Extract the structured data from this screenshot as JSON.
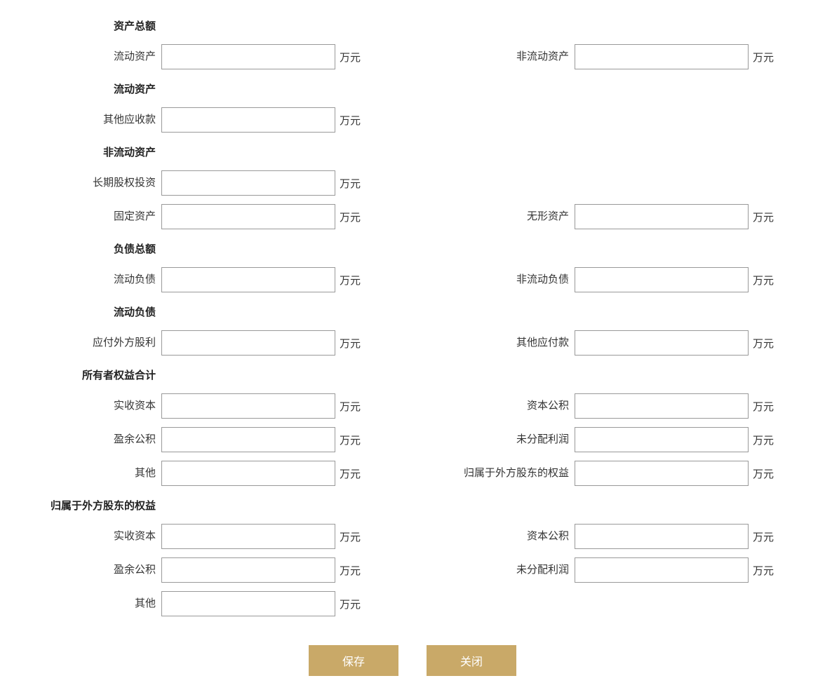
{
  "unit": "万元",
  "sections": {
    "total_assets": {
      "header": "资产总额"
    },
    "current_assets_section": {
      "header": "流动资产"
    },
    "non_current_assets_section": {
      "header": "非流动资产"
    },
    "total_liabilities": {
      "header": "负债总额"
    },
    "current_liabilities_section": {
      "header": "流动负债"
    },
    "owners_equity_section": {
      "header": "所有者权益合计"
    },
    "foreign_equity_section": {
      "header": "归属于外方股东的权益"
    }
  },
  "labels": {
    "current_assets": "流动资产",
    "non_current_assets": "非流动资产",
    "other_receivables": "其他应收款",
    "long_term_equity_investment": "长期股权投资",
    "fixed_assets": "固定资产",
    "intangible_assets": "无形资产",
    "current_liabilities": "流动负债",
    "non_current_liabilities": "非流动负债",
    "dividends_payable_foreign": "应付外方股利",
    "other_payables": "其他应付款",
    "paid_in_capital": "实收资本",
    "capital_reserve": "资本公积",
    "surplus_reserve": "盈余公积",
    "undistributed_profit": "未分配利润",
    "other": "其他",
    "foreign_shareholder_equity": "归属于外方股东的权益",
    "paid_in_capital2": "实收资本",
    "capital_reserve2": "资本公积",
    "surplus_reserve2": "盈余公积",
    "undistributed_profit2": "未分配利润",
    "other2": "其他"
  },
  "buttons": {
    "save": "保存",
    "close": "关闭"
  },
  "colors": {
    "button_bg": "#c9a968",
    "button_text": "#ffffff",
    "input_border": "#999999",
    "text": "#333333"
  }
}
